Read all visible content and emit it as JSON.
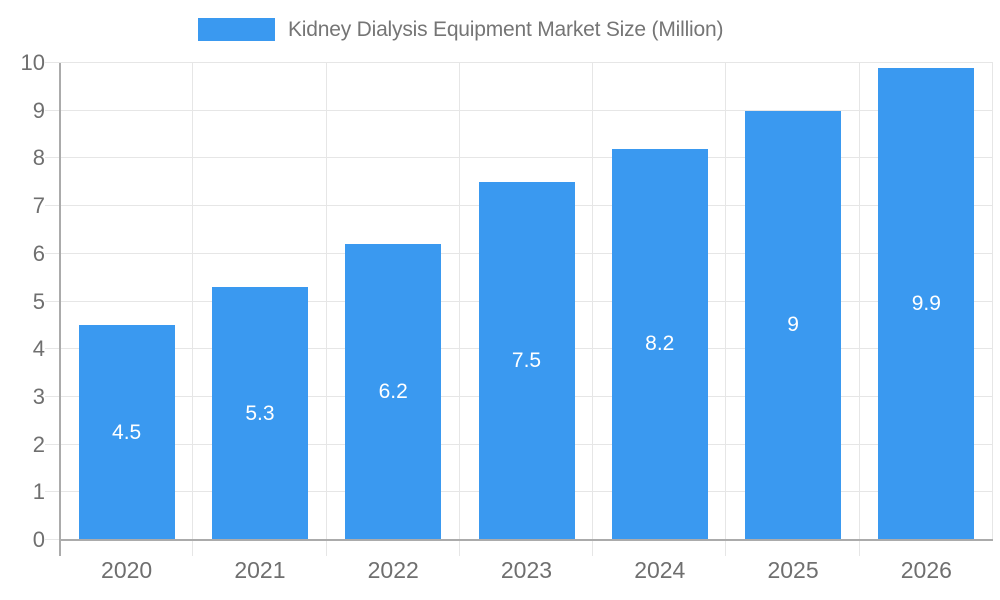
{
  "chart_data": {
    "type": "bar",
    "title": "Kidney Dialysis Equipment Market Size (Million)",
    "legend_position": "top",
    "categories": [
      "2020",
      "2021",
      "2022",
      "2023",
      "2024",
      "2025",
      "2026"
    ],
    "values": [
      4.5,
      5.3,
      6.2,
      7.5,
      8.2,
      9,
      9.9
    ],
    "xlabel": "",
    "ylabel": "",
    "ylim": [
      0,
      10
    ],
    "yticks": [
      0,
      1,
      2,
      3,
      4,
      5,
      6,
      7,
      8,
      9,
      10
    ],
    "grid": true,
    "value_label_position": "inside-center"
  },
  "style": {
    "bar_color": "#3a99f0",
    "grid_color": "#e6e6e6",
    "axis_color": "#ababab",
    "tick_label_color": "#6f6f6f",
    "title_color": "#757575",
    "value_label_color": "#ffffff",
    "background_color": "#ffffff"
  }
}
